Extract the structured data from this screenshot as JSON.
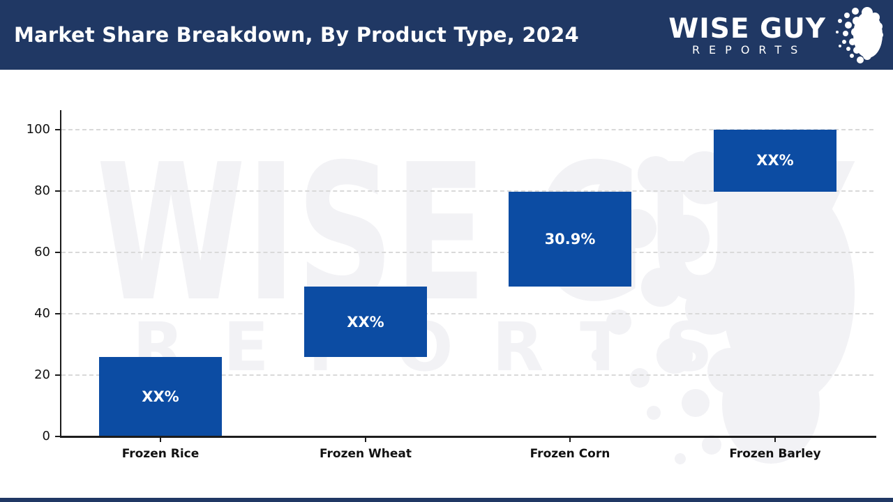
{
  "header": {
    "title": "Market Share Breakdown, By Product Type, 2024",
    "logo_line1": "WISE GUY",
    "logo_line2": "REPORTS"
  },
  "watermark": {
    "line1": "WISE GUY",
    "line2": "REPORTS"
  },
  "colors": {
    "header_bg": "#203864",
    "bar_fill": "#0c4ca3",
    "grid": "#d9d9d9",
    "axis": "#1c1c1c",
    "watermark": "#f2f2f5"
  },
  "chart_data": {
    "type": "bar",
    "subtype": "waterfall",
    "title": "Market Share Breakdown, By Product Type, 2024",
    "categories": [
      "Frozen Rice",
      "Frozen Wheat",
      "Frozen Corn",
      "Frozen Barley"
    ],
    "segments": [
      {
        "category": "Frozen Rice",
        "start": 0,
        "end": 25.8,
        "label": "XX%"
      },
      {
        "category": "Frozen Wheat",
        "start": 25.8,
        "end": 48.9,
        "label": "XX%"
      },
      {
        "category": "Frozen Corn",
        "start": 48.9,
        "end": 79.8,
        "label": "30.9%"
      },
      {
        "category": "Frozen Barley",
        "start": 79.8,
        "end": 100,
        "label": "XX%"
      }
    ],
    "xlabel": "",
    "ylabel": "",
    "ylim": [
      0,
      100
    ],
    "yticks": [
      0,
      20,
      40,
      60,
      80,
      100
    ],
    "grid": "horizontal-dashed",
    "legend": "none"
  }
}
